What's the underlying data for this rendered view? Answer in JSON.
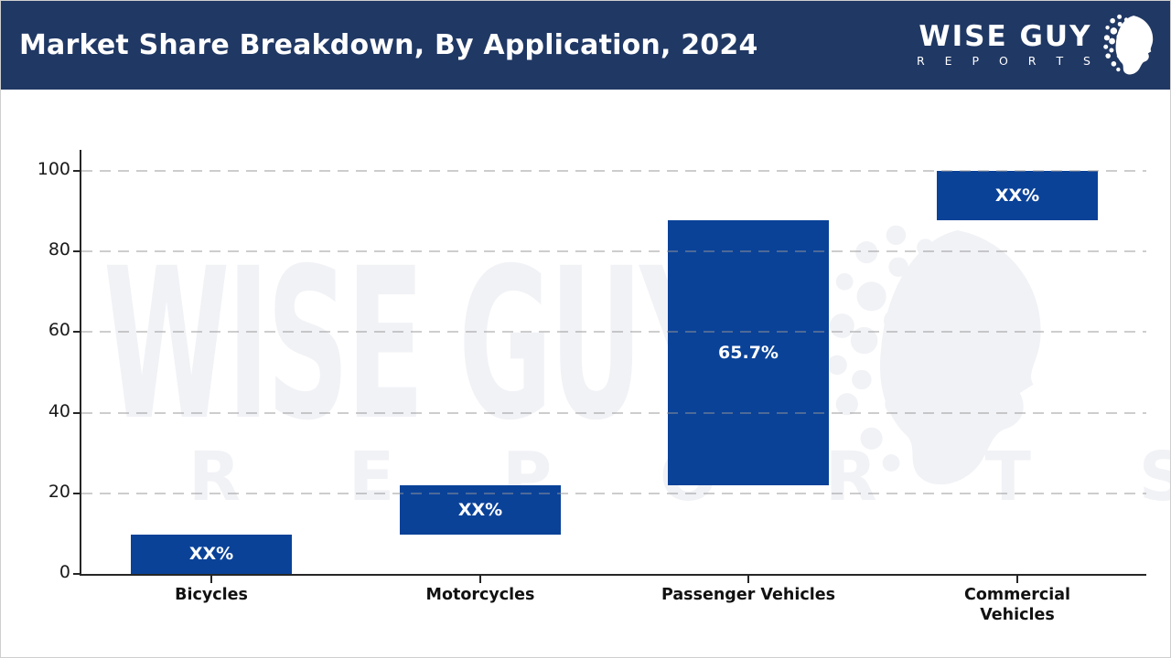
{
  "header": {
    "title": "Market Share Breakdown, By Application, 2024",
    "bg_color": "#203864",
    "logo": {
      "line1": "WISE GUY",
      "line2": "R E P O R T S",
      "icon": "dotted-face-icon"
    }
  },
  "watermark": {
    "line1": "WISE GUY",
    "line2": "R E P O R T S",
    "icon": "dotted-face-icon",
    "color": "#f1f2f6"
  },
  "chart_data": {
    "type": "bar",
    "variant": "stacked-waterfall",
    "title": "Market Share Breakdown, By Application, 2024",
    "categories": [
      "Bicycles",
      "Motorcycles",
      "Passenger Vehicles",
      "Commercial Vehicles"
    ],
    "category_tick_labels": [
      "Bicycles",
      "Motorcycles",
      "Passenger Vehicles",
      "Commercial\nVehicles"
    ],
    "series": [
      {
        "name": "Market Share (%)",
        "segments": [
          {
            "category": "Bicycles",
            "from": 0,
            "to": 9.8,
            "label": "XX%"
          },
          {
            "category": "Motorcycles",
            "from": 9.8,
            "to": 22,
            "label": "XX%"
          },
          {
            "category": "Passenger Vehicles",
            "from": 22,
            "to": 87.7,
            "label": "65.7%"
          },
          {
            "category": "Commercial Vehicles",
            "from": 87.7,
            "to": 100,
            "label": "XX%"
          }
        ]
      }
    ],
    "ylim": [
      0,
      100
    ],
    "yticks": [
      0,
      20,
      40,
      60,
      80,
      100
    ],
    "ytick_labels": [
      "0",
      "20",
      "40",
      "60",
      "80",
      "100"
    ],
    "grid": {
      "horizontal": true,
      "style": "dashed",
      "color": "#d9d9d9",
      "above_bars": true
    },
    "bar_color": "#0a4298",
    "bar_label_color": "#ffffff",
    "legend": "none"
  }
}
